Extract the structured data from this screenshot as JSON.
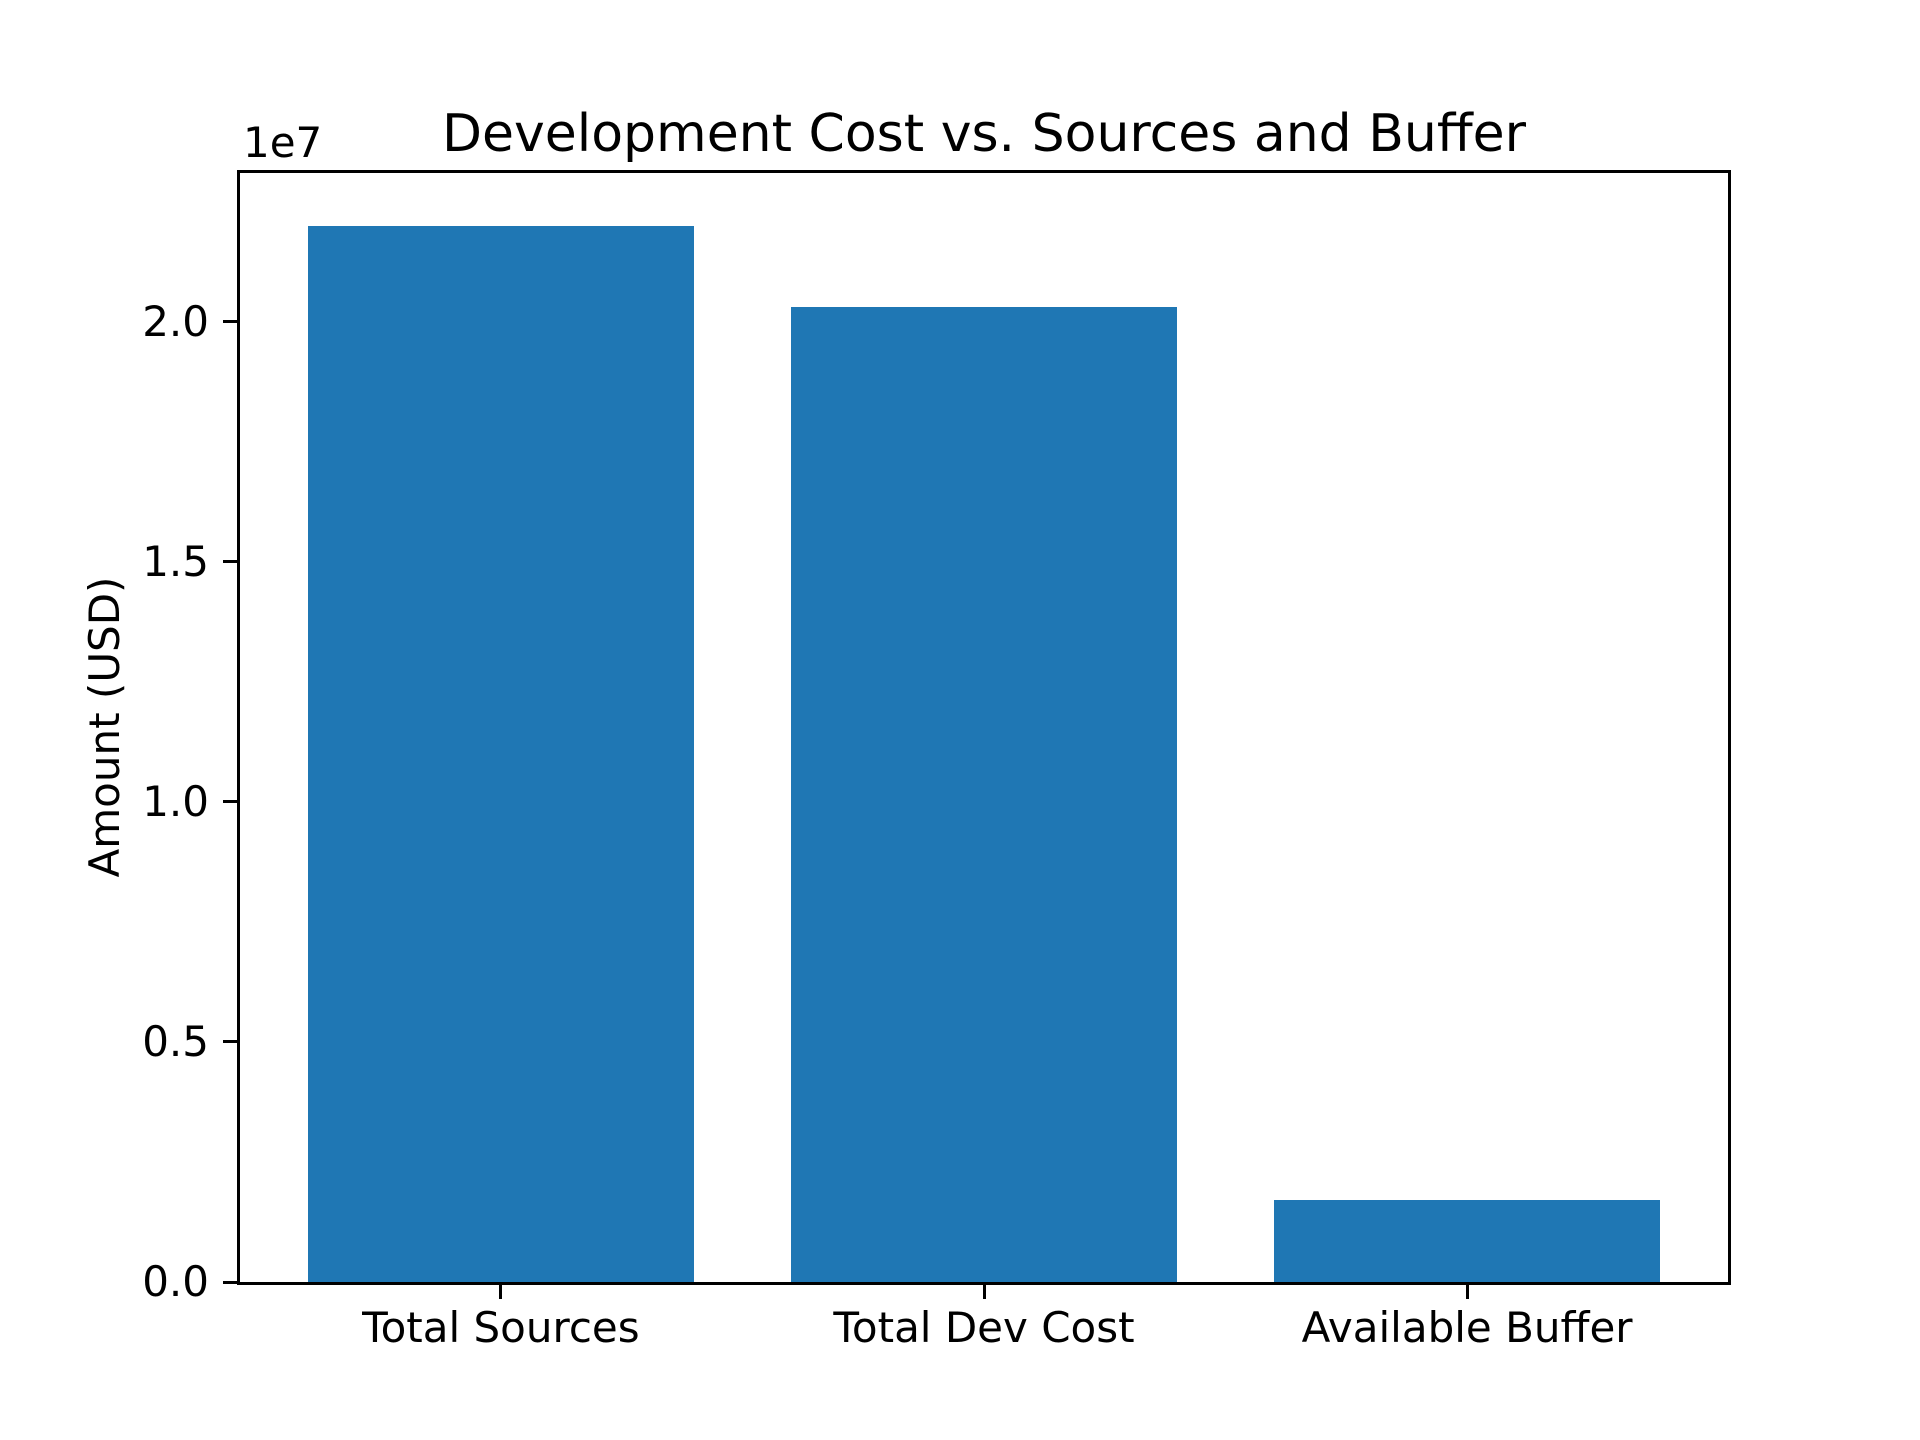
{
  "chart_data": {
    "type": "bar",
    "title": "Development Cost vs. Sources and Buffer",
    "ylabel": "Amount (USD)",
    "xlabel": "",
    "y_offset_label": "1e7",
    "categories": [
      "Total Sources",
      "Total Dev Cost",
      "Available Buffer"
    ],
    "values": [
      22000000,
      20300000,
      1700000
    ],
    "bar_color": "#1f77b4",
    "axis_color": "#000000",
    "background_color": "#ffffff",
    "ylim": [
      0,
      23100000
    ],
    "xlim": [
      -0.54,
      2.54
    ],
    "bar_width": 0.8,
    "yticks": [
      {
        "value": 0,
        "label": "0.0"
      },
      {
        "value": 5000000,
        "label": "0.5"
      },
      {
        "value": 10000000,
        "label": "1.0"
      },
      {
        "value": 15000000,
        "label": "1.5"
      },
      {
        "value": 20000000,
        "label": "2.0"
      }
    ],
    "grid": false,
    "legend": null
  }
}
